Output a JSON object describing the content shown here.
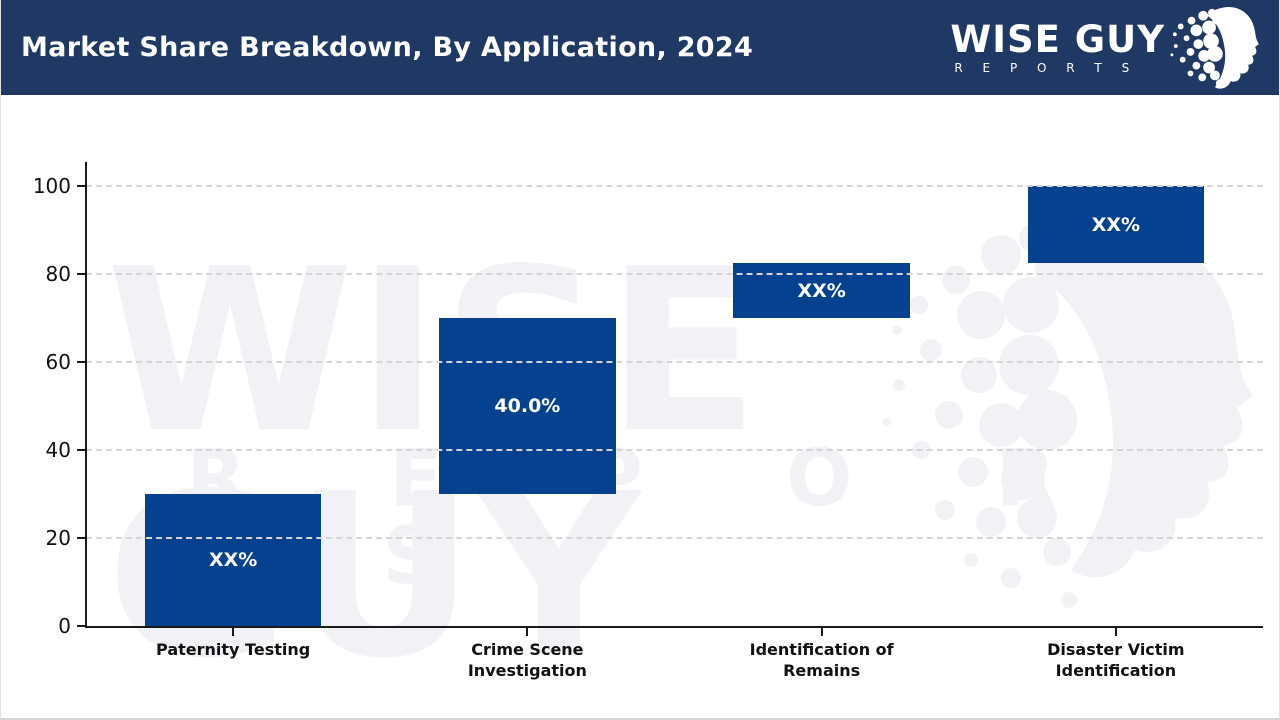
{
  "header": {
    "title": "Market Share Breakdown, By Application, 2024",
    "logo": {
      "brand_line1": "WISE GUY",
      "brand_line2": "R E P O R T S"
    }
  },
  "watermark": {
    "line1": "WISE GUY",
    "line2": "R E P O R T S"
  },
  "chart_data": {
    "type": "bar",
    "subtype": "floating-segment-waterfall",
    "title": "Market Share Breakdown, By Application, 2024",
    "categories": [
      "Paternity Testing",
      "Crime Scene\nInvestigation",
      "Identification of\nRemains",
      "Disaster Victim\nIdentification"
    ],
    "segments": [
      {
        "category": "Paternity Testing",
        "start": 0,
        "end": 30,
        "label": "XX%"
      },
      {
        "category": "Crime Scene Investigation",
        "start": 30,
        "end": 70,
        "label": "40.0%"
      },
      {
        "category": "Identification of Remains",
        "start": 70,
        "end": 82.5,
        "label": "XX%"
      },
      {
        "category": "Disaster Victim Identification",
        "start": 82.5,
        "end": 100,
        "label": "XX%"
      }
    ],
    "ylim": [
      0,
      100
    ],
    "yticks": [
      0,
      20,
      40,
      60,
      80,
      100
    ],
    "xlabel": "",
    "ylabel": "",
    "legend": null,
    "grid": {
      "axis": "y",
      "style": "dashed"
    }
  },
  "colors": {
    "header_bg": "#1f3864",
    "page_bg": "#ffffff",
    "bar": "#04418f",
    "bar_label": "#ffffff",
    "axis": "#1a1a1a",
    "grid": "#d5d5d5",
    "tick_text": "#111111",
    "title_text": "#ffffff",
    "watermark": "#f1f2f5"
  }
}
